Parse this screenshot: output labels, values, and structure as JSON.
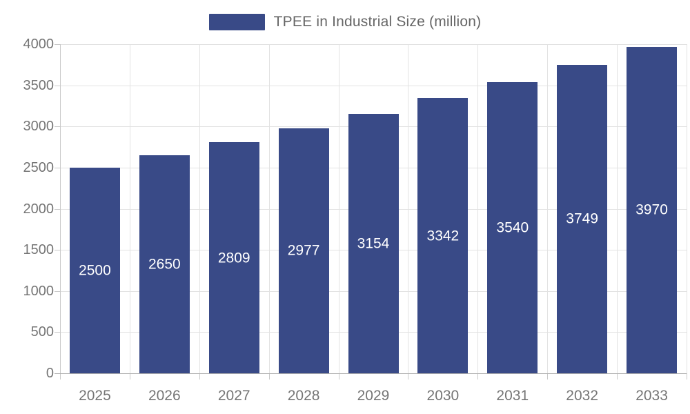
{
  "legend": {
    "label": "TPEE in Industrial Size (million)"
  },
  "chart_data": {
    "type": "bar",
    "title": "TPEE in Industrial Size (million)",
    "categories": [
      "2025",
      "2026",
      "2027",
      "2028",
      "2029",
      "2030",
      "2031",
      "2032",
      "2033"
    ],
    "values": [
      2500,
      2650,
      2809,
      2977,
      3154,
      3342,
      3540,
      3749,
      3970
    ],
    "series": [
      {
        "name": "TPEE in Industrial Size (million)",
        "values": [
          2500,
          2650,
          2809,
          2977,
          3154,
          3342,
          3540,
          3749,
          3970
        ]
      }
    ],
    "xlabel": "",
    "ylabel": "",
    "ylim": [
      0,
      4000
    ],
    "yticks": [
      0,
      500,
      1000,
      1500,
      2000,
      2500,
      3000,
      3500,
      4000
    ],
    "grid": true,
    "legend_position": "top-center",
    "value_labels": "inside-center",
    "colors": {
      "bar": "#394a87",
      "value_label": "#ffffff",
      "grid": "#e2e2e2",
      "axis": "#c9c9c9",
      "baseline": "#aeaeae",
      "tick_text": "#757575",
      "legend_text": "#666666"
    }
  }
}
